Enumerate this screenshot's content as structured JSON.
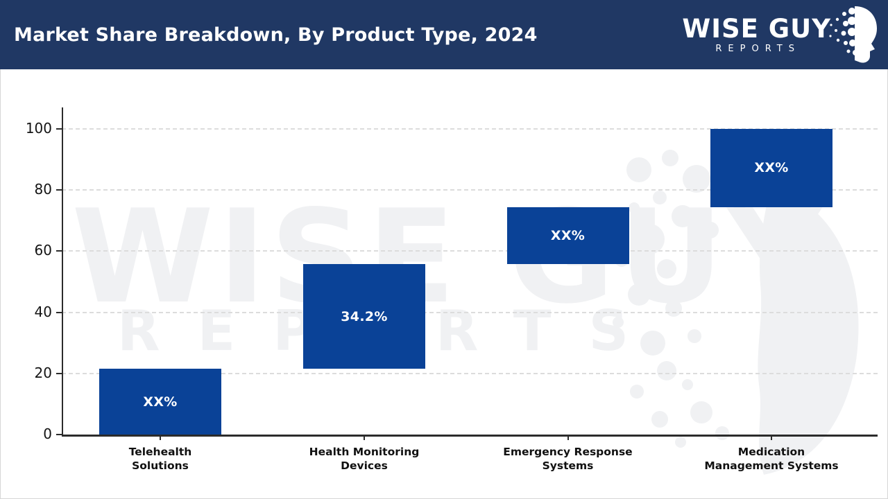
{
  "header": {
    "title": "Market Share Breakdown, By Product Type, 2024",
    "logo": {
      "line1": "WISE GUY",
      "line2": "REPORTS"
    }
  },
  "watermark": {
    "line1": "WISE GUY",
    "line2": "REPORTS"
  },
  "colors": {
    "header_bg": "#203864",
    "bar": "#0a4297",
    "bar_label_text": "#ffffff",
    "grid": "#dcdcdc",
    "axis": "#2b2b2b",
    "watermark": "#f0f1f3",
    "title_text": "#ffffff"
  },
  "chart_data": {
    "type": "bar",
    "subtype": "waterfall-stacked-breakdown",
    "title": "Market Share Breakdown, By Product Type, 2024",
    "xlabel": "",
    "ylabel": "",
    "ylim": [
      0,
      100
    ],
    "yticks": [
      0,
      20,
      40,
      60,
      80,
      100
    ],
    "grid": "horizontal-dashed",
    "legend": "none",
    "categories": [
      "Telehealth\nSolutions",
      "Health Monitoring\nDevices",
      "Emergency Response\nSystems",
      "Medication\nManagement Systems"
    ],
    "bars": [
      {
        "category": "Telehealth Solutions",
        "start": 0,
        "end": 21.5,
        "height": 21.5,
        "label": "XX%"
      },
      {
        "category": "Health Monitoring Devices",
        "start": 21.5,
        "end": 55.7,
        "height": 34.2,
        "label": "34.2%"
      },
      {
        "category": "Emergency Response Systems",
        "start": 55.7,
        "end": 74.4,
        "height": 18.7,
        "label": "XX%"
      },
      {
        "category": "Medication Management Systems",
        "start": 74.4,
        "end": 100,
        "height": 25.6,
        "label": "XX%"
      }
    ]
  }
}
